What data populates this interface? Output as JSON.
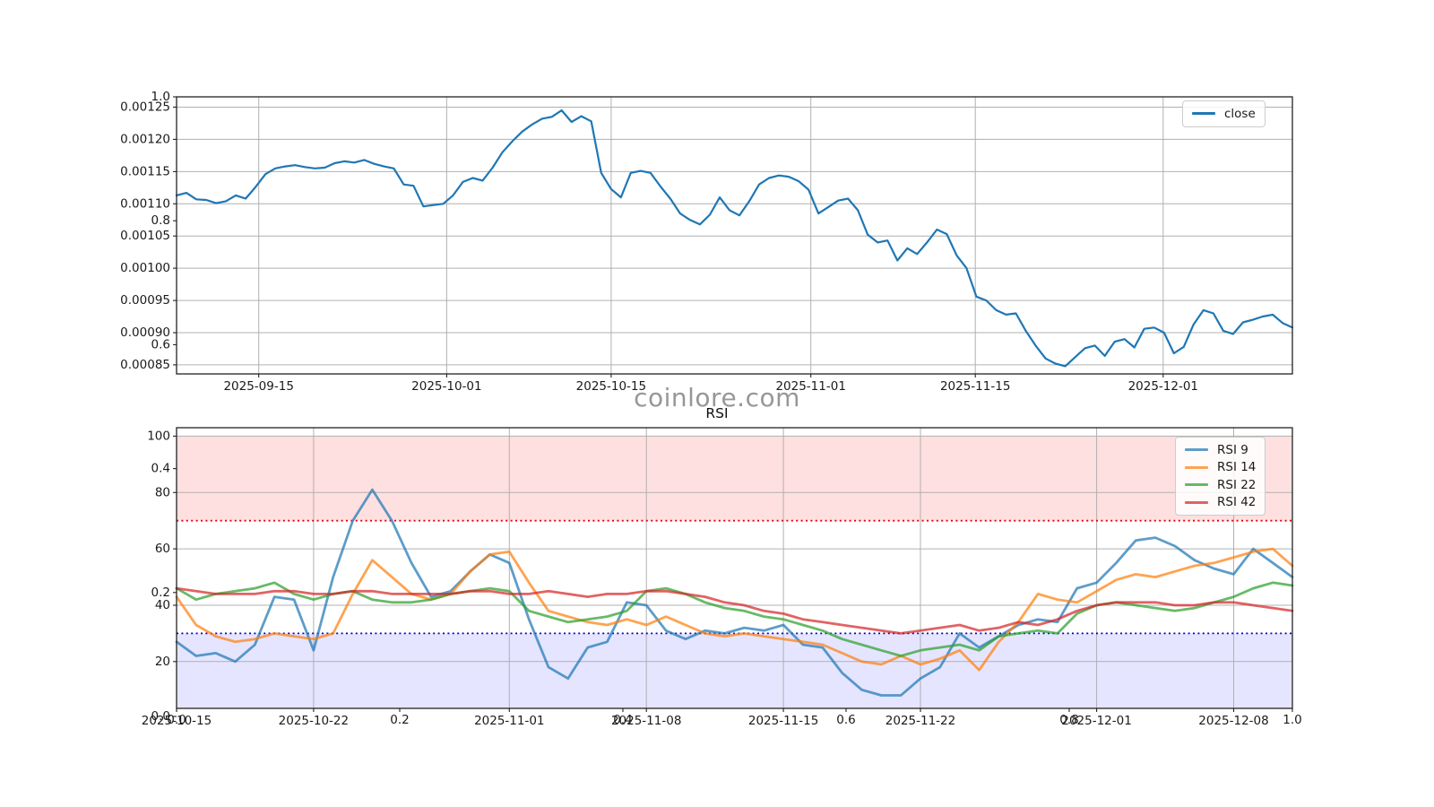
{
  "watermark": "coinlore.com",
  "overlay_axis": {
    "y_labels": [
      "1.0",
      "0.8",
      "0.6",
      "0.4",
      "0.2",
      "0.0"
    ],
    "x_labels": [
      "0.0",
      "0.2",
      "0.4",
      "0.6",
      "0.8",
      "1.0"
    ]
  },
  "chart_data": [
    {
      "type": "line",
      "title": "",
      "x_start": "2025-09-08",
      "x_end": "2025-12-12",
      "x_ticks": [
        "2025-09-15",
        "2025-10-01",
        "2025-10-15",
        "2025-11-01",
        "2025-11-15",
        "2025-12-01"
      ],
      "y_tick_labels": [
        "0.00085",
        "0.00090",
        "0.00095",
        "0.00100",
        "0.00105",
        "0.00110",
        "0.00115",
        "0.00120",
        "0.00125"
      ],
      "ylim": [
        0.000836,
        0.001266
      ],
      "grid": true,
      "grid_color": "#b0b0b0",
      "legend_position": "upper right",
      "series": [
        {
          "name": "close",
          "color": "#1f77b4",
          "width": 2.2,
          "opacity": 1,
          "values": [
            0.001113,
            0.001117,
            0.001107,
            0.001106,
            0.001101,
            0.001104,
            0.001113,
            0.001108,
            0.001126,
            0.001146,
            0.001155,
            0.001158,
            0.00116,
            0.001157,
            0.001155,
            0.001156,
            0.001163,
            0.001166,
            0.001164,
            0.001168,
            0.001162,
            0.001158,
            0.001155,
            0.00113,
            0.001128,
            0.001096,
            0.001098,
            0.0011,
            0.001113,
            0.001134,
            0.00114,
            0.001136,
            0.001156,
            0.00118,
            0.001197,
            0.001212,
            0.001223,
            0.001232,
            0.001235,
            0.001245,
            0.001227,
            0.001236,
            0.001228,
            0.001148,
            0.001123,
            0.00111,
            0.001148,
            0.001151,
            0.001148,
            0.001127,
            0.001108,
            0.001085,
            0.001075,
            0.001068,
            0.001083,
            0.00111,
            0.00109,
            0.001082,
            0.001104,
            0.00113,
            0.00114,
            0.001144,
            0.001142,
            0.001135,
            0.001122,
            0.001085,
            0.001095,
            0.001105,
            0.001108,
            0.00109,
            0.001052,
            0.00104,
            0.001043,
            0.001012,
            0.001031,
            0.001022,
            0.00104,
            0.00106,
            0.001053,
            0.00102,
            0.001,
            0.000956,
            0.00095,
            0.000935,
            0.000928,
            0.00093,
            0.000903,
            0.00088,
            0.00086,
            0.000852,
            0.000848,
            0.000862,
            0.000876,
            0.00088,
            0.000864,
            0.000886,
            0.00089,
            0.000877,
            0.000906,
            0.000908,
            0.0009,
            0.000868,
            0.000878,
            0.000913,
            0.000935,
            0.00093,
            0.000903,
            0.000898,
            0.000916,
            0.00092,
            0.000925,
            0.000928,
            0.000915,
            0.000908
          ]
        }
      ]
    },
    {
      "type": "line",
      "title": "RSI",
      "x_start": "2025-10-15",
      "x_end": "2025-12-11",
      "x_ticks": [
        "2025-10-15",
        "2025-10-22",
        "2025-11-01",
        "2025-11-08",
        "2025-11-15",
        "2025-11-22",
        "2025-12-01",
        "2025-12-08"
      ],
      "y_tick_labels": [
        "100",
        "80",
        "60",
        "40",
        "20"
      ],
      "ylim": [
        3.4,
        103
      ],
      "grid": true,
      "grid_color": "#b0b0b0",
      "legend_position": "upper right",
      "overbought_level": 70,
      "oversold_level": 30,
      "bands": [
        {
          "name": "overbought-band",
          "from": 70,
          "to": 100,
          "color": "rgba(255,0,0,0.12)"
        },
        {
          "name": "oversold-band",
          "from": 0,
          "to": 30,
          "color": "rgba(0,0,255,0.10)"
        }
      ],
      "ref_lines": [
        {
          "name": "overbought-line",
          "value": 70,
          "color": "#e8000b"
        },
        {
          "name": "oversold-line",
          "value": 30,
          "color": "#0000cc"
        }
      ],
      "series": [
        {
          "name": "RSI 9",
          "color": "#1f77b4",
          "width": 2.8,
          "opacity": 0.72,
          "values": [
            27,
            22,
            23,
            20,
            26,
            43,
            42,
            24,
            50,
            70,
            81,
            70,
            55,
            43,
            45,
            52,
            58,
            55,
            35,
            18,
            14,
            25,
            27,
            41,
            40,
            31,
            28,
            31,
            30,
            32,
            31,
            33,
            26,
            25,
            16,
            10,
            8,
            8,
            14,
            18,
            30,
            25,
            29,
            33,
            35,
            34,
            46,
            48,
            55,
            63,
            64,
            61,
            56,
            53,
            51,
            60,
            55,
            50
          ]
        },
        {
          "name": "RSI 14",
          "color": "#ff7f0e",
          "width": 2.8,
          "opacity": 0.72,
          "values": [
            43,
            33,
            29,
            27,
            28,
            30,
            29,
            28,
            30,
            44,
            56,
            50,
            44,
            42,
            44,
            52,
            58,
            59,
            48,
            38,
            36,
            34,
            33,
            35,
            33,
            36,
            33,
            30,
            29,
            30,
            29,
            28,
            27,
            26,
            23,
            20,
            19,
            22,
            19,
            21,
            24,
            17,
            27,
            34,
            44,
            42,
            41,
            45,
            49,
            51,
            50,
            52,
            54,
            55,
            57,
            59,
            60,
            54
          ]
        },
        {
          "name": "RSI 22",
          "color": "#2ca02c",
          "width": 2.8,
          "opacity": 0.72,
          "values": [
            46,
            42,
            44,
            45,
            46,
            48,
            44,
            42,
            44,
            45,
            42,
            41,
            41,
            42,
            44,
            45,
            46,
            45,
            38,
            36,
            34,
            35,
            36,
            38,
            45,
            46,
            44,
            41,
            39,
            38,
            36,
            35,
            33,
            31,
            28,
            26,
            24,
            22,
            24,
            25,
            26,
            24,
            29,
            30,
            31,
            30,
            37,
            40,
            41,
            40,
            39,
            38,
            39,
            41,
            43,
            46,
            48,
            47
          ]
        },
        {
          "name": "RSI 42",
          "color": "#d62728",
          "width": 2.8,
          "opacity": 0.72,
          "values": [
            46,
            45,
            44,
            44,
            44,
            45,
            45,
            44,
            44,
            45,
            45,
            44,
            44,
            44,
            44,
            45,
            45,
            44,
            44,
            45,
            44,
            43,
            44,
            44,
            45,
            45,
            44,
            43,
            41,
            40,
            38,
            37,
            35,
            34,
            33,
            32,
            31,
            30,
            31,
            32,
            33,
            31,
            32,
            34,
            33,
            35,
            38,
            40,
            41,
            41,
            41,
            40,
            40,
            41,
            41,
            40,
            39,
            38
          ]
        }
      ]
    }
  ]
}
